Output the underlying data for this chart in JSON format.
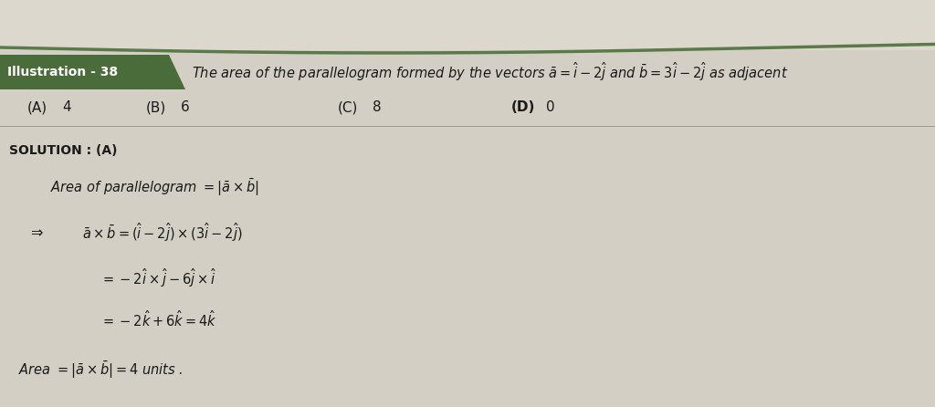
{
  "page_bg_top": "#e8e4dc",
  "page_bg_main": "#d4cfc4",
  "header_bg": "#4a6b3a",
  "header_text": "Illustration - 38",
  "header_fontsize": 10,
  "title_text": "The area of the parallelogram formed by the vectors $\\bar{a}=\\hat{i}-2\\hat{j}$ and $\\bar{b}=3\\hat{i}-2\\hat{j}$ as adjacent",
  "title_fontsize": 10.5,
  "options": [
    {
      "label": "(A)",
      "value": "4"
    },
    {
      "label": "(B)",
      "value": "6"
    },
    {
      "label": "(C)",
      "value": "8"
    },
    {
      "label": "(D)",
      "value": "0"
    }
  ],
  "options_fontsize": 11,
  "solution_label": "SOLUTION : (A)",
  "solution_fontsize": 10,
  "line1": "Area of parallelogram $=|\\bar{a}\\times\\bar{b}|$",
  "line2_arrow": "$\\Rightarrow$",
  "line2_eq": "$\\bar{a}\\times\\bar{b}=(\\hat{i}-2\\hat{j})\\times(3\\hat{i}-2\\hat{j})$",
  "line3": "$=-2\\hat{i}\\times\\hat{j}-6\\hat{j}\\times\\hat{i}$",
  "line4": "$=-2\\hat{k}+6\\hat{k}=4\\hat{k}$",
  "final_line": "Area $=|\\bar{a}\\times\\bar{b}|=4$ units .",
  "body_fontsize": 10.5,
  "curve_color": "#5a7a4a",
  "text_color": "#1a1a1a",
  "separator_color": "#999999"
}
